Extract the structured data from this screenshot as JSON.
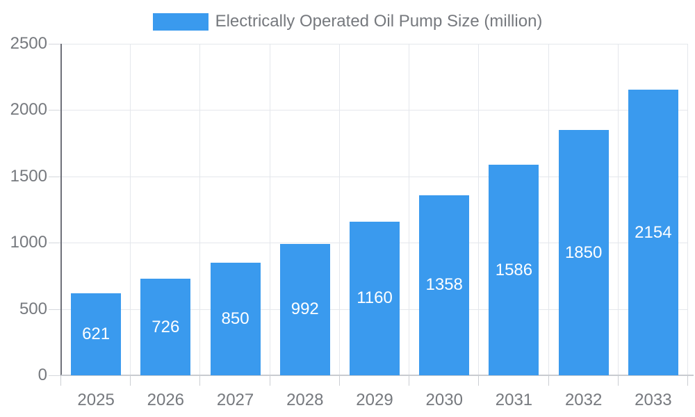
{
  "chart_data": {
    "type": "bar",
    "title": "",
    "legend": "Electrically Operated Oil Pump Size (million)",
    "categories": [
      "2025",
      "2026",
      "2027",
      "2028",
      "2029",
      "2030",
      "2031",
      "2032",
      "2033"
    ],
    "series": [
      {
        "name": "Electrically Operated Oil Pump Size (million)",
        "values": [
          621,
          726,
          850,
          992,
          1160,
          1358,
          1586,
          1850,
          2154
        ]
      }
    ],
    "xlabel": "",
    "ylabel": "",
    "ylim": [
      0,
      2500
    ],
    "y_ticks": [
      0,
      500,
      1000,
      1500,
      2000,
      2500
    ],
    "grid": true,
    "legend_position": "top",
    "value_labels": "inside-center-white",
    "colors": {
      "bar": "#3A9AEE",
      "axis_text": "#76797E",
      "gridline": "#E4E7EC",
      "axis_line": "#6E7079",
      "value_label": "#FFFFFF"
    }
  }
}
